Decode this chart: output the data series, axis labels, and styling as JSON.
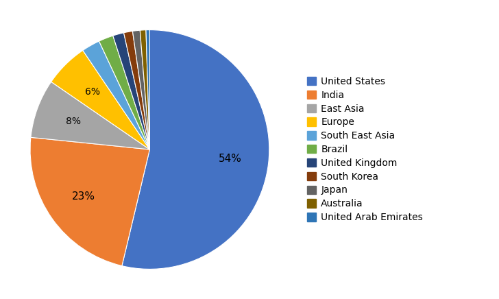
{
  "labels": [
    "United States",
    "India",
    "East Asia",
    "Europe",
    "South East Asia",
    "Brazil",
    "United Kingdom",
    "South Korea",
    "Japan",
    "Australia",
    "United Arab Emirates"
  ],
  "values": [
    54,
    23,
    8,
    6,
    2.5,
    2,
    1.5,
    1.2,
    1.0,
    0.8,
    0.5
  ],
  "colors": [
    "#4472C4",
    "#ED7D31",
    "#A5A5A5",
    "#FFC000",
    "#5BA3D9",
    "#70AD47",
    "#264478",
    "#843C0C",
    "#636363",
    "#7F6000",
    "#2E75B6"
  ],
  "show_pct": [
    "United States",
    "India",
    "East Asia",
    "Europe"
  ],
  "pct_labels": {
    "United States": "54%",
    "India": "23%",
    "East Asia": "8%",
    "Europe": "6%"
  },
  "startangle": 90,
  "title_fontsize": 18,
  "legend_fontsize": 10,
  "background_color": "#ffffff"
}
